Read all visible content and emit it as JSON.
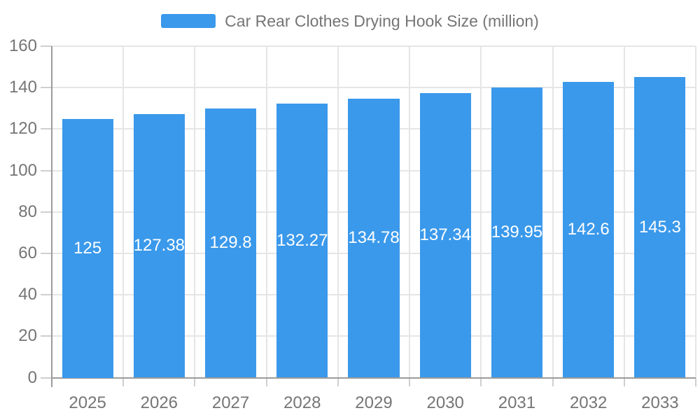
{
  "colors": {
    "bar": "#3A99EB",
    "text": "#757575",
    "axis": "#9B9B9B",
    "grid": "#E5E5E5",
    "tick": "#CFCFCF",
    "bar_label": "#FFFFFF",
    "background": "#FFFFFF"
  },
  "legend": {
    "label": "Car Rear Clothes Drying Hook Size (million)"
  },
  "chart_data": {
    "type": "bar",
    "title": "Car Rear Clothes Drying Hook Size (million)",
    "categories": [
      "2025",
      "2026",
      "2027",
      "2028",
      "2029",
      "2030",
      "2031",
      "2032",
      "2033"
    ],
    "values": [
      125,
      127.38,
      129.8,
      132.27,
      134.78,
      137.34,
      139.95,
      142.6,
      145.3
    ],
    "value_labels": [
      "125",
      "127.38",
      "129.8",
      "132.27",
      "134.78",
      "137.34",
      "139.95",
      "142.6",
      "145.3"
    ],
    "xlabel": "",
    "ylabel": "",
    "ylim": [
      0,
      160
    ],
    "yticks": [
      0,
      20,
      40,
      60,
      80,
      100,
      120,
      140,
      160
    ],
    "grid": true,
    "legend_position": "top-center",
    "bar_label_position": "inside-middle"
  }
}
